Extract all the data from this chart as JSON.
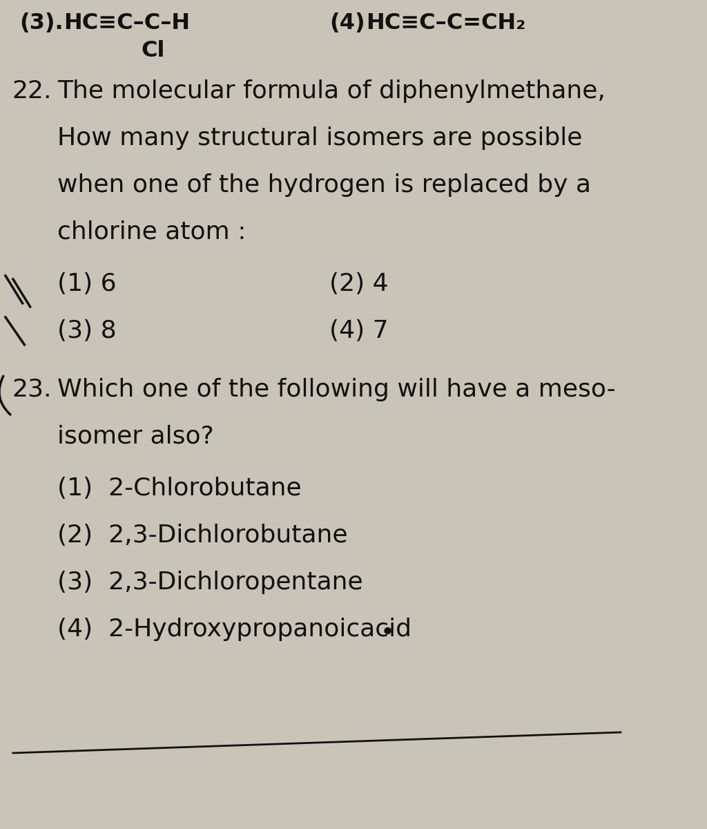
{
  "bg_color": "#c8c4b8",
  "text_color": "#111111",
  "figsize": [
    10.24,
    12.0
  ],
  "dpi": 100,
  "font_size_main": 26,
  "font_size_top": 22,
  "font_size_formula": 23,
  "q22_line1": "The molecular formula of diphenylmethane,",
  "q22_line2": "How many structural isomers are possible",
  "q22_line3": "when one of the hydrogen is replaced by a",
  "q22_line4": "chlorine atom :",
  "q22_opt1": "(1) 6",
  "q22_opt2": "(2) 4",
  "q22_opt3": "(3) 8",
  "q22_opt4": "(4) 7",
  "q23_line1": "Which one of the following will have a meso-",
  "q23_line2": "isomer also?",
  "q23_opt1": "(1)  2-Chlorobutane",
  "q23_opt2": "(2)  2,3-Dichlorobutane",
  "q23_opt3": "(3)  2,3-Dichloropentane",
  "q23_opt4": "(4)  2-Hydroxypropanoicacid"
}
